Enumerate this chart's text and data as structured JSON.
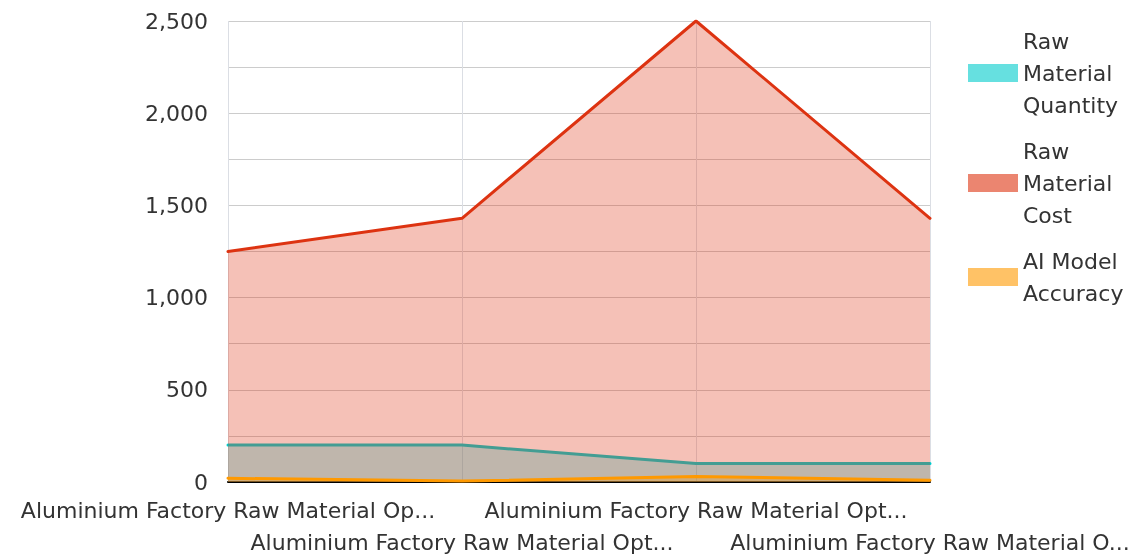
{
  "chart_data": {
    "type": "area",
    "categories": [
      "Aluminium Factory Raw Material Op...",
      "Aluminium Factory Raw Material Opt...",
      "Aluminium Factory Raw Material Opt...",
      "Aluminium Factory Raw Material O..."
    ],
    "series": [
      {
        "name": "Raw Material Quantity",
        "color": "#00cccc",
        "values": [
          200,
          200,
          100,
          100
        ]
      },
      {
        "name": "Raw Material Cost",
        "color": "#dd3311",
        "values": [
          1250,
          1430,
          2500,
          1430
        ]
      },
      {
        "name": "AI Model Accuracy",
        "color": "#ff9900",
        "values": [
          20,
          5,
          30,
          10
        ]
      }
    ],
    "ylim": [
      0,
      2500
    ],
    "yticks": [
      0,
      {
        "value": 250,
        "label": null
      },
      {
        "value": 500,
        "label": "500"
      },
      {
        "value": 750,
        "label": null
      },
      {
        "value": 1000,
        "label": "1,000"
      },
      {
        "value": 1250,
        "label": null
      },
      {
        "value": 1500,
        "label": "1,500"
      },
      {
        "value": 1750,
        "label": null
      },
      {
        "value": 2000,
        "label": "2,000"
      },
      {
        "value": 2250,
        "label": null
      },
      {
        "value": 2500,
        "label": "2,500"
      }
    ],
    "grid": true,
    "legend": "right",
    "marker": "none",
    "line_style": "solid"
  }
}
